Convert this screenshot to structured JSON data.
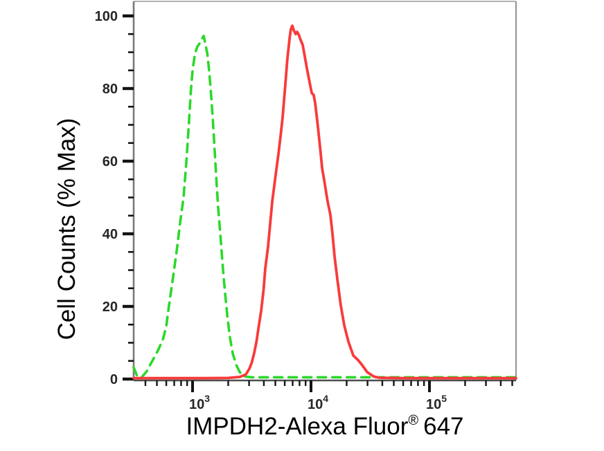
{
  "figure": {
    "kind": "flow-cytometry-overlay-histogram",
    "background_color": "#ffffff"
  },
  "chart_data": {
    "type": "line",
    "title": "",
    "xlabel": "IMPDH2-Alexa Fluor® 647",
    "xlabel_parts": {
      "main": "IMPDH2-Alexa Fluor",
      "sup": "®",
      "suffix": "647"
    },
    "ylabel": "Cell Counts (% Max)",
    "x_scale": "log10",
    "x_range_log10": [
      2.503,
      5.731
    ],
    "ylim": [
      0,
      104
    ],
    "grid": false,
    "legend": "none",
    "y_major_ticks": [
      0,
      20,
      40,
      60,
      80,
      100
    ],
    "y_minor_step": 5,
    "x_decade_ticks": [
      3,
      4,
      5
    ],
    "x_minor_decades": [
      2,
      3,
      4,
      5
    ],
    "x_tick_label_base": "10",
    "colors": {
      "frame_top": "#b2b2b2",
      "frame_right": "#929292",
      "axis_left": "#7a7a7a",
      "axis_bottom": "#4d4d4d",
      "tick": "#141414",
      "tick_label": "#262626",
      "title": "#000000"
    },
    "series": [
      {
        "id": "control-green-dashed",
        "style": "dashed",
        "color": "#2bd82b",
        "stroke_width": 3.6,
        "dash": "12 9",
        "peak": {
          "log10_x": 3.09,
          "pct_max": 94.5
        },
        "points": [
          [
            2.503,
            3.2
          ],
          [
            2.53,
            1.0
          ],
          [
            2.565,
            0.3
          ],
          [
            2.61,
            2.0
          ],
          [
            2.66,
            5.0
          ],
          [
            2.71,
            8.0
          ],
          [
            2.75,
            11.0
          ],
          [
            2.778,
            14.5
          ],
          [
            2.8,
            20.0
          ],
          [
            2.835,
            28.0
          ],
          [
            2.865,
            35.0
          ],
          [
            2.895,
            43.0
          ],
          [
            2.924,
            50.0
          ],
          [
            2.95,
            61.0
          ],
          [
            2.97,
            71.0
          ],
          [
            2.985,
            79.0
          ],
          [
            3.0,
            85.0
          ],
          [
            3.02,
            89.5
          ],
          [
            3.04,
            91.5
          ],
          [
            3.06,
            92.5
          ],
          [
            3.08,
            93.8
          ],
          [
            3.094,
            94.5
          ],
          [
            3.11,
            92.0
          ],
          [
            3.125,
            89.5
          ],
          [
            3.14,
            85.0
          ],
          [
            3.155,
            79.0
          ],
          [
            3.17,
            72.0
          ],
          [
            3.185,
            64.0
          ],
          [
            3.2,
            55.5
          ],
          [
            3.215,
            47.5
          ],
          [
            3.235,
            39.5
          ],
          [
            3.255,
            31.0
          ],
          [
            3.275,
            23.5
          ],
          [
            3.295,
            17.0
          ],
          [
            3.315,
            11.5
          ],
          [
            3.34,
            7.0
          ],
          [
            3.37,
            3.8
          ],
          [
            3.4,
            1.8
          ],
          [
            3.44,
            0.7
          ],
          [
            3.5,
            0.5
          ],
          [
            3.7,
            0.5
          ],
          [
            3.9,
            0.5
          ],
          [
            4.1,
            0.5
          ],
          [
            4.35,
            0.5
          ],
          [
            4.6,
            0.5
          ],
          [
            4.85,
            0.5
          ],
          [
            5.1,
            0.5
          ],
          [
            5.35,
            0.5
          ],
          [
            5.6,
            0.5
          ],
          [
            5.731,
            0.5
          ]
        ]
      },
      {
        "id": "sample-red-solid",
        "style": "solid",
        "color": "#f93a3a",
        "stroke_width": 3.8,
        "dash": "",
        "peak": {
          "log10_x": 3.842,
          "pct_max": 97.3
        },
        "points": [
          [
            2.503,
            0.25
          ],
          [
            2.8,
            0.25
          ],
          [
            3.1,
            0.25
          ],
          [
            3.3,
            0.3
          ],
          [
            3.4,
            0.6
          ],
          [
            3.45,
            1.3
          ],
          [
            3.48,
            2.9
          ],
          [
            3.5,
            4.6
          ],
          [
            3.52,
            7.1
          ],
          [
            3.54,
            10.3
          ],
          [
            3.556,
            14.0
          ],
          [
            3.58,
            19.0
          ],
          [
            3.6,
            24.8
          ],
          [
            3.614,
            30.5
          ],
          [
            3.637,
            36.3
          ],
          [
            3.655,
            42.7
          ],
          [
            3.673,
            49.0
          ],
          [
            3.696,
            54.8
          ],
          [
            3.725,
            62.0
          ],
          [
            3.743,
            67.0
          ],
          [
            3.76,
            72.0
          ],
          [
            3.784,
            81.5
          ],
          [
            3.8,
            88.0
          ],
          [
            3.82,
            94.0
          ],
          [
            3.83,
            96.3
          ],
          [
            3.842,
            97.3
          ],
          [
            3.855,
            96.0
          ],
          [
            3.871,
            95.0
          ],
          [
            3.883,
            95.6
          ],
          [
            3.9,
            94.6
          ],
          [
            3.906,
            93.9
          ],
          [
            3.93,
            92.0
          ],
          [
            3.947,
            89.0
          ],
          [
            3.965,
            85.6
          ],
          [
            3.988,
            81.8
          ],
          [
            4.006,
            78.8
          ],
          [
            4.023,
            78.2
          ],
          [
            4.035,
            76.0
          ],
          [
            4.053,
            71.0
          ],
          [
            4.076,
            64.0
          ],
          [
            4.094,
            58.0
          ],
          [
            4.111,
            54.8
          ],
          [
            4.14,
            49.0
          ],
          [
            4.164,
            45.2
          ],
          [
            4.181,
            40.0
          ],
          [
            4.199,
            33.8
          ],
          [
            4.222,
            27.5
          ],
          [
            4.251,
            20.4
          ],
          [
            4.281,
            14.7
          ],
          [
            4.316,
            10.3
          ],
          [
            4.357,
            6.5
          ],
          [
            4.398,
            5.2
          ],
          [
            4.433,
            3.8
          ],
          [
            4.474,
            1.9
          ],
          [
            4.53,
            0.7
          ],
          [
            4.58,
            0.35
          ],
          [
            4.8,
            0.25
          ],
          [
            5.1,
            0.25
          ],
          [
            5.4,
            0.25
          ],
          [
            5.731,
            0.25
          ]
        ]
      }
    ]
  }
}
